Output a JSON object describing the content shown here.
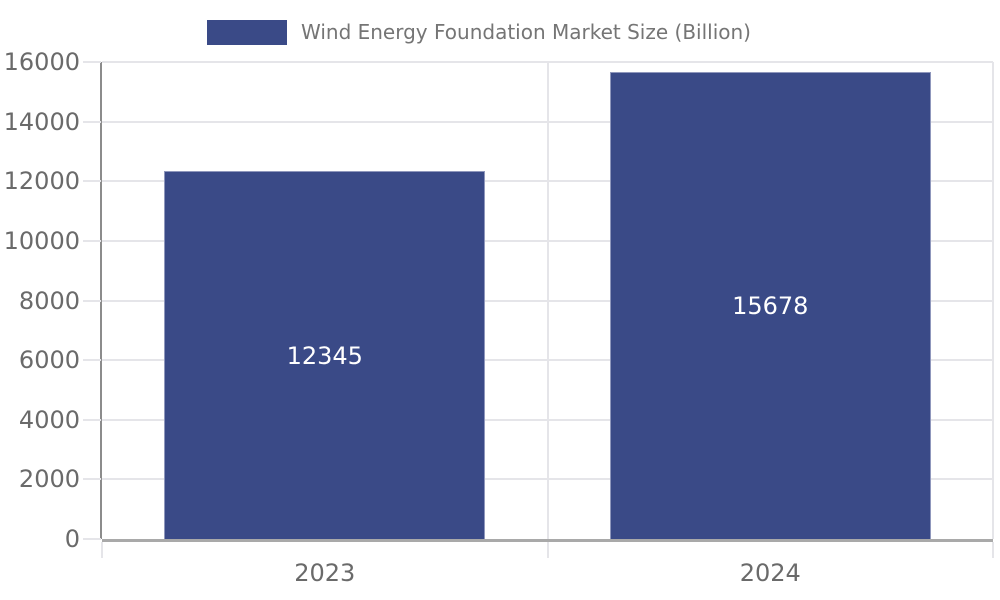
{
  "legend": {
    "label": "Wind Energy Foundation Market Size (Billion)"
  },
  "chart_data": {
    "type": "bar",
    "title": "Wind Energy Foundation Market Size (Billion)",
    "categories": [
      "2023",
      "2024"
    ],
    "series": [
      {
        "name": "Wind Energy Foundation Market Size (Billion)",
        "values": [
          12345,
          15678
        ]
      }
    ],
    "data_labels": [
      "12345",
      "15678"
    ],
    "xlabel": "",
    "ylabel": "",
    "ylim": [
      0,
      16000
    ],
    "ytick_step": 2000,
    "yticks": [
      0,
      2000,
      4000,
      6000,
      8000,
      10000,
      12000,
      14000,
      16000
    ],
    "grid": true,
    "legend_position": "top-center",
    "bar_labels_inside": true
  },
  "colors": {
    "background": "#FFFFFF",
    "bar": "#3A4A87",
    "grid_line": "#E5E5E9",
    "axis_line_y": "#8C8C8C",
    "axis_line_x": "#A9A9A9",
    "tick_label": "#6A6A6A",
    "legend_text": "#757575",
    "bar_label": "#FFFFFF"
  }
}
